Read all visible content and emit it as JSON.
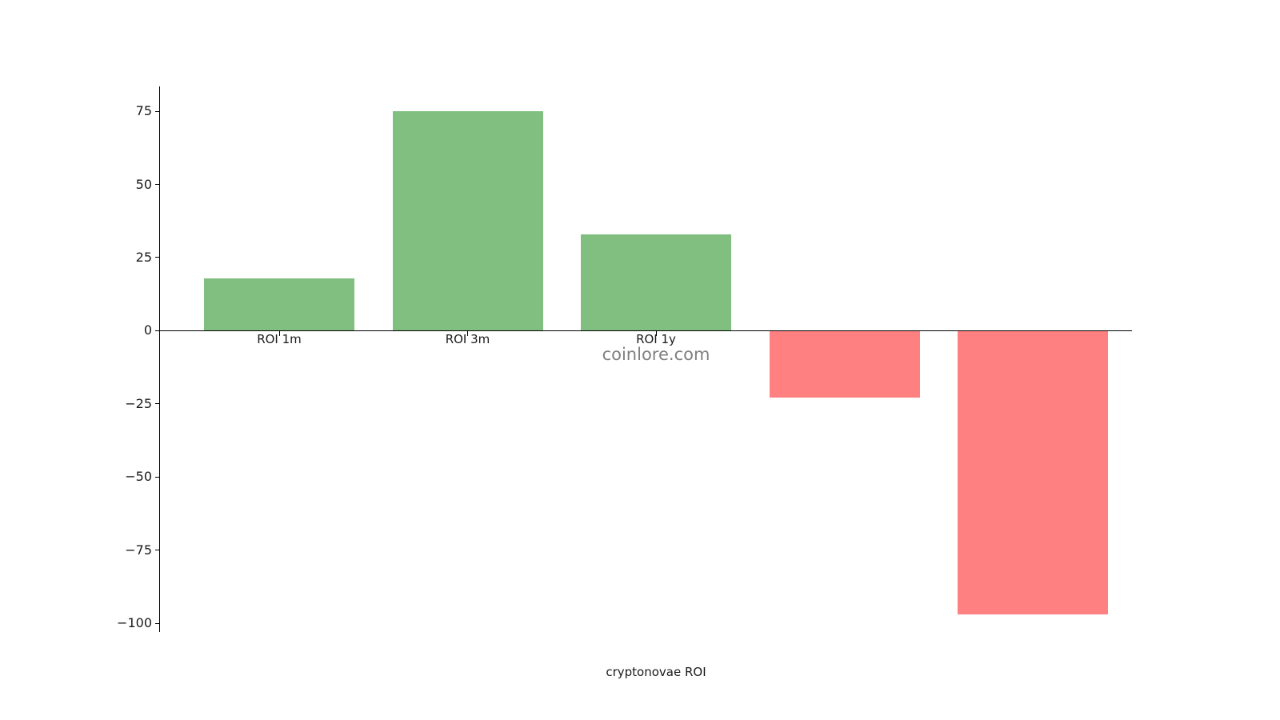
{
  "watermark": {
    "text": "coinlore.com",
    "color": "#7f7f7f"
  },
  "chart_data": {
    "type": "bar",
    "title": "cryptonovae ROI",
    "categories": [
      "ROI 1m",
      "ROI 3m",
      "ROI 1y",
      "",
      ""
    ],
    "values": [
      18,
      75,
      33,
      -23,
      -97
    ],
    "series": [
      {
        "name": "cryptonovae ROI %",
        "values": [
          18,
          75,
          33,
          -23,
          -97
        ]
      }
    ],
    "xlabel": "cryptonovae ROI",
    "ylabel": "",
    "y_ticks": [
      75,
      50,
      25,
      0,
      -25,
      -50,
      -75,
      -100
    ],
    "y_tick_labels": [
      "75",
      "50",
      "25",
      "0",
      "−25",
      "−50",
      "−75",
      "−100"
    ],
    "ylim": [
      -103,
      83.5
    ],
    "grid": false,
    "legend": null,
    "positive_color": "#80bf80",
    "negative_color": "#ff8080",
    "axis_color": "#000000",
    "text_color": "#1a1a1a"
  }
}
